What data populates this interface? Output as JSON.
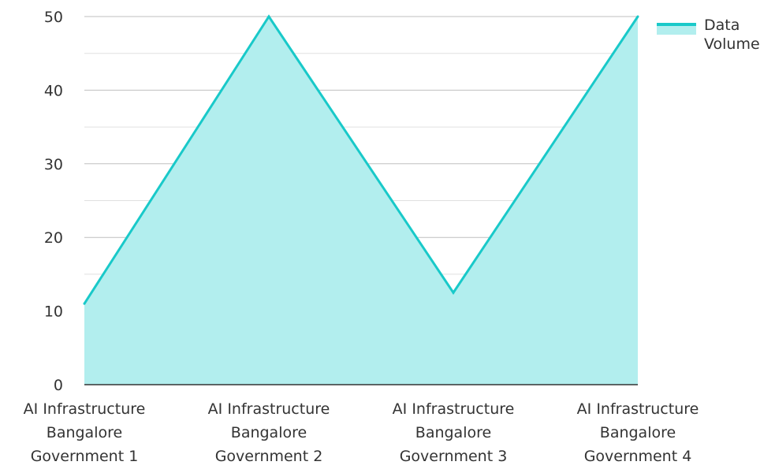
{
  "chart_data": {
    "type": "area",
    "categories": [
      "AI Infrastructure Bangalore Government 1",
      "AI Infrastructure Bangalore Government 2",
      "AI Infrastructure Bangalore Government 3",
      "AI Infrastructure Bangalore Government 4"
    ],
    "category_lines": [
      [
        "AI Infrastructure",
        "Bangalore",
        "Government 1"
      ],
      [
        "AI Infrastructure",
        "Bangalore",
        "Government 2"
      ],
      [
        "AI Infrastructure",
        "Bangalore",
        "Government 3"
      ],
      [
        "AI Infrastructure",
        "Bangalore",
        "Government 4"
      ]
    ],
    "series": [
      {
        "name": "Data Volume",
        "values": [
          11,
          50,
          12.5,
          50
        ]
      }
    ],
    "yticks": [
      0,
      10,
      20,
      30,
      40,
      50
    ],
    "ylim": [
      0,
      50
    ],
    "grid": true,
    "legend": "top-right",
    "colors": {
      "line": "#19c9c9",
      "fill": "#b2eeee",
      "grid_major": "#bfbfbf",
      "grid_minor": "#e0e0e0",
      "axis": "#333333"
    }
  },
  "legend": {
    "series_label": "Data Volume"
  }
}
